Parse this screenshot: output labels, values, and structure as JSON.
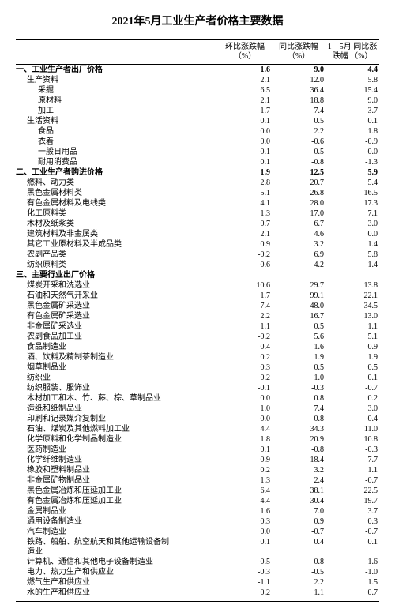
{
  "title": "2021年5月工业生产者价格主要数据",
  "columns": {
    "label": "",
    "c1": "环比涨跌幅\n（%）",
    "c2": "同比涨跌幅\n（%）",
    "c3": "1—5月\n同比涨跌幅\n（%）"
  },
  "rows": [
    {
      "lv": 0,
      "bold": true,
      "label": "一、工业生产者出厂价格",
      "v": [
        "1.6",
        "9.0",
        "4.4"
      ]
    },
    {
      "lv": 1,
      "label": "生产资料",
      "v": [
        "2.1",
        "12.0",
        "5.8"
      ]
    },
    {
      "lv": 2,
      "label": "采掘",
      "v": [
        "6.5",
        "36.4",
        "15.4"
      ]
    },
    {
      "lv": 2,
      "label": "原材料",
      "v": [
        "2.1",
        "18.8",
        "9.0"
      ]
    },
    {
      "lv": 2,
      "label": "加工",
      "v": [
        "1.7",
        "7.4",
        "3.7"
      ]
    },
    {
      "lv": 1,
      "label": "生活资料",
      "v": [
        "0.1",
        "0.5",
        "0.1"
      ]
    },
    {
      "lv": 2,
      "label": "食品",
      "v": [
        "0.0",
        "2.2",
        "1.8"
      ]
    },
    {
      "lv": 2,
      "label": "衣着",
      "v": [
        "0.0",
        "-0.6",
        "-0.9"
      ]
    },
    {
      "lv": 2,
      "label": "一般日用品",
      "v": [
        "0.1",
        "0.5",
        "0.0"
      ]
    },
    {
      "lv": 2,
      "label": "耐用消费品",
      "v": [
        "0.1",
        "-0.8",
        "-1.3"
      ]
    },
    {
      "lv": 0,
      "bold": true,
      "label": "二、工业生产者购进价格",
      "v": [
        "1.9",
        "12.5",
        "5.9"
      ]
    },
    {
      "lv": 1,
      "label": "燃料、动力类",
      "v": [
        "2.8",
        "20.7",
        "5.4"
      ]
    },
    {
      "lv": 1,
      "label": "黑色金属材料类",
      "v": [
        "5.1",
        "26.8",
        "16.5"
      ]
    },
    {
      "lv": 1,
      "label": "有色金属材料及电线类",
      "v": [
        "4.1",
        "28.0",
        "17.3"
      ]
    },
    {
      "lv": 1,
      "label": "化工原料类",
      "v": [
        "1.3",
        "17.0",
        "7.1"
      ]
    },
    {
      "lv": 1,
      "label": "木材及纸浆类",
      "v": [
        "0.7",
        "6.7",
        "3.0"
      ]
    },
    {
      "lv": 1,
      "label": "建筑材料及非金属类",
      "v": [
        "2.1",
        "4.6",
        "0.0"
      ]
    },
    {
      "lv": 1,
      "label": "其它工业原材料及半成品类",
      "v": [
        "0.9",
        "3.2",
        "1.4"
      ]
    },
    {
      "lv": 1,
      "label": "农副产品类",
      "v": [
        "-0.2",
        "6.9",
        "5.8"
      ]
    },
    {
      "lv": 1,
      "label": "纺织原料类",
      "v": [
        "0.6",
        "4.2",
        "1.4"
      ]
    },
    {
      "lv": 0,
      "bold": true,
      "label": "三、主要行业出厂价格",
      "v": [
        "",
        "",
        ""
      ]
    },
    {
      "lv": 1,
      "label": "煤炭开采和洗选业",
      "v": [
        "10.6",
        "29.7",
        "13.8"
      ]
    },
    {
      "lv": 1,
      "label": "石油和天然气开采业",
      "v": [
        "1.7",
        "99.1",
        "22.1"
      ]
    },
    {
      "lv": 1,
      "label": "黑色金属矿采选业",
      "v": [
        "7.4",
        "48.0",
        "34.5"
      ]
    },
    {
      "lv": 1,
      "label": "有色金属矿采选业",
      "v": [
        "2.2",
        "16.7",
        "13.0"
      ]
    },
    {
      "lv": 1,
      "label": "非金属矿采选业",
      "v": [
        "1.1",
        "0.5",
        "1.1"
      ]
    },
    {
      "lv": 1,
      "label": "农副食品加工业",
      "v": [
        "-0.2",
        "5.6",
        "5.1"
      ]
    },
    {
      "lv": 1,
      "label": "食品制造业",
      "v": [
        "0.4",
        "1.6",
        "0.9"
      ]
    },
    {
      "lv": 1,
      "label": "酒、饮料及精制茶制造业",
      "v": [
        "0.2",
        "1.9",
        "1.9"
      ]
    },
    {
      "lv": 1,
      "label": "烟草制品业",
      "v": [
        "0.3",
        "0.5",
        "0.5"
      ]
    },
    {
      "lv": 1,
      "label": "纺织业",
      "v": [
        "0.2",
        "1.0",
        "0.1"
      ]
    },
    {
      "lv": 1,
      "label": "纺织服装、服饰业",
      "v": [
        "-0.1",
        "-0.3",
        "-0.7"
      ]
    },
    {
      "lv": 1,
      "label": "木材加工和木、竹、藤、棕、草制品业",
      "v": [
        "0.0",
        "0.8",
        "0.2"
      ]
    },
    {
      "lv": 1,
      "label": "造纸和纸制品业",
      "v": [
        "1.0",
        "7.4",
        "3.0"
      ]
    },
    {
      "lv": 1,
      "label": "印刷和记录媒介复制业",
      "v": [
        "0.0",
        "-0.8",
        "-0.4"
      ]
    },
    {
      "lv": 1,
      "label": "石油、煤炭及其他燃料加工业",
      "v": [
        "4.4",
        "34.3",
        "11.0"
      ]
    },
    {
      "lv": 1,
      "label": "化学原料和化学制品制造业",
      "v": [
        "1.8",
        "20.9",
        "10.8"
      ]
    },
    {
      "lv": 1,
      "label": "医药制造业",
      "v": [
        "0.1",
        "-0.8",
        "-0.3"
      ]
    },
    {
      "lv": 1,
      "label": "化学纤维制造业",
      "v": [
        "-0.9",
        "18.4",
        "7.7"
      ]
    },
    {
      "lv": 1,
      "label": "橡胶和塑料制品业",
      "v": [
        "0.2",
        "3.2",
        "1.1"
      ]
    },
    {
      "lv": 1,
      "label": "非金属矿物制品业",
      "v": [
        "1.3",
        "2.4",
        "-0.7"
      ]
    },
    {
      "lv": 1,
      "label": "黑色金属冶炼和压延加工业",
      "v": [
        "6.4",
        "38.1",
        "22.5"
      ]
    },
    {
      "lv": 1,
      "label": "有色金属冶炼和压延加工业",
      "v": [
        "4.4",
        "30.4",
        "19.7"
      ]
    },
    {
      "lv": 1,
      "label": "金属制品业",
      "v": [
        "1.6",
        "7.0",
        "3.7"
      ]
    },
    {
      "lv": 1,
      "label": "通用设备制造业",
      "v": [
        "0.3",
        "0.9",
        "0.3"
      ]
    },
    {
      "lv": 1,
      "label": "汽车制造业",
      "v": [
        "0.0",
        "-0.7",
        "-0.7"
      ]
    },
    {
      "lv": 1,
      "label": "铁路、船舶、航空航天和其他运输设备制\n造业",
      "v": [
        "0.1",
        "0.4",
        "0.1"
      ]
    },
    {
      "lv": 1,
      "label": "计算机、通信和其他电子设备制造业",
      "v": [
        "0.5",
        "-0.8",
        "-1.6"
      ]
    },
    {
      "lv": 1,
      "label": "电力、热力生产和供应业",
      "v": [
        "-0.3",
        "-0.5",
        "-1.0"
      ]
    },
    {
      "lv": 1,
      "label": "燃气生产和供应业",
      "v": [
        "-1.1",
        "2.2",
        "1.5"
      ]
    },
    {
      "lv": 1,
      "label": "水的生产和供应业",
      "v": [
        "0.2",
        "1.1",
        "0.7"
      ]
    }
  ]
}
